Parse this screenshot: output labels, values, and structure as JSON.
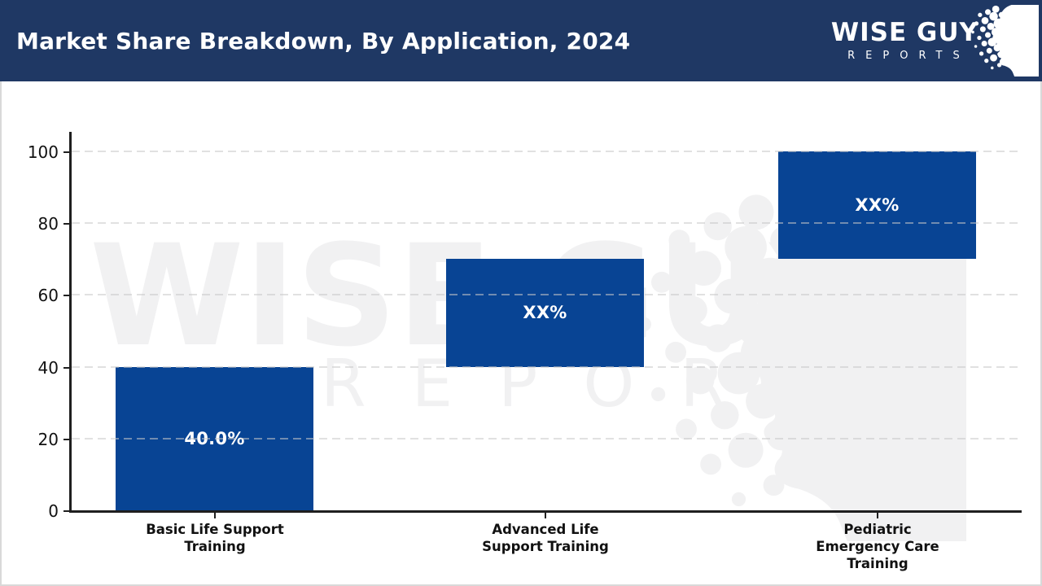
{
  "header": {
    "title": "Market Share Breakdown, By Application, 2024",
    "logo": {
      "wordmark": "WISE GUY",
      "subtitle": "REPORTS"
    }
  },
  "watermark": {
    "wordmark": "WISE GUY",
    "subtitle": "REPORTS"
  },
  "colors": {
    "header_bg": "#1f3864",
    "bar": "#084494",
    "axis": "#1f1f1f",
    "grid": "rgba(200,200,200,0.55)",
    "tick_text": "#111111",
    "value_label": "#ffffff",
    "watermark": "#f1f1f2"
  },
  "chart_data": {
    "type": "bar",
    "variant": "floating-segments-waterfall",
    "title": "Market Share Breakdown, By Application, 2024",
    "categories": [
      [
        "Basic Life Support",
        "Training"
      ],
      [
        "Advanced Life",
        "Support Training"
      ],
      [
        "Pediatric",
        "Emergency Care",
        "Training"
      ]
    ],
    "segments": [
      {
        "start": 0,
        "end": 40,
        "label": "40.0%"
      },
      {
        "start": 40,
        "end": 70,
        "label": "XX%"
      },
      {
        "start": 70,
        "end": 100,
        "label": "XX%"
      }
    ],
    "yticks": [
      0,
      20,
      40,
      60,
      80,
      100
    ],
    "ylim": [
      0,
      105
    ],
    "xlabel": "",
    "ylabel": "",
    "grid": "horizontal-dashed",
    "legend": "none"
  }
}
